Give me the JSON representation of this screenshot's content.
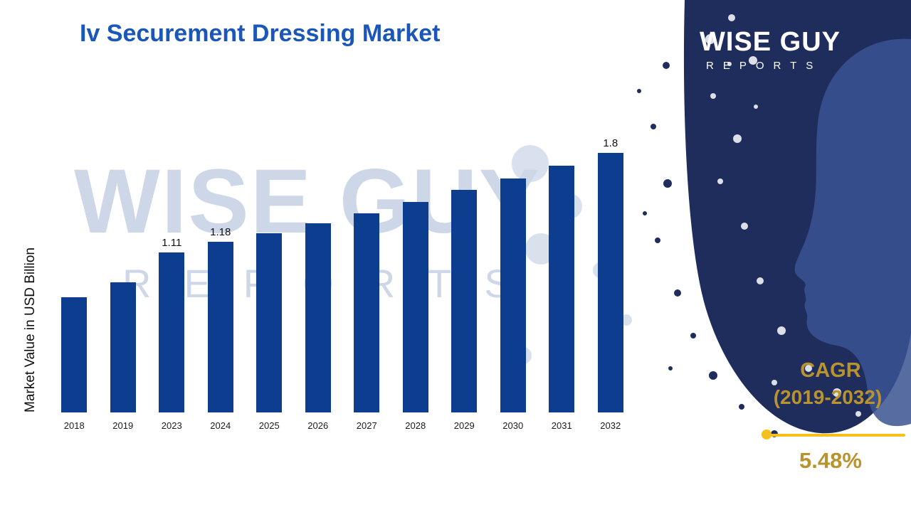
{
  "title": "Iv Securement Dressing Market",
  "watermark": {
    "line1": "WISE GUY",
    "line2": "REPORTS"
  },
  "logo": {
    "line1": "WISE GUY",
    "line2": "REPORTS"
  },
  "cagr": {
    "label": "CAGR",
    "range": "(2019-2032)",
    "value": "5.48%"
  },
  "chart_data": {
    "type": "bar",
    "title": "Iv Securement Dressing Market",
    "xlabel": "",
    "ylabel": "Market Value in USD Billion",
    "categories": [
      "2018",
      "2019",
      "2023",
      "2024",
      "2025",
      "2026",
      "2027",
      "2028",
      "2029",
      "2030",
      "2031",
      "2032"
    ],
    "values": [
      0.8,
      0.9,
      1.11,
      1.18,
      1.24,
      1.31,
      1.38,
      1.46,
      1.54,
      1.62,
      1.71,
      1.8
    ],
    "data_labels": [
      "",
      "",
      "1.11",
      "1.18",
      "",
      "",
      "",
      "",
      "",
      "",
      "",
      "1.8"
    ],
    "ylim": [
      0,
      2
    ],
    "grid": false,
    "legend": "none",
    "bar_color": "#0d3d8f"
  },
  "colors": {
    "title_blue": "#1a57b8",
    "bar_blue": "#0d3d8f",
    "brand_navy": "#1f2d5c",
    "face_blue": "#3a5492",
    "gold_text": "#b8932e",
    "gold_line": "#f2c11e",
    "watermark_blue": "#cdd7e8"
  }
}
